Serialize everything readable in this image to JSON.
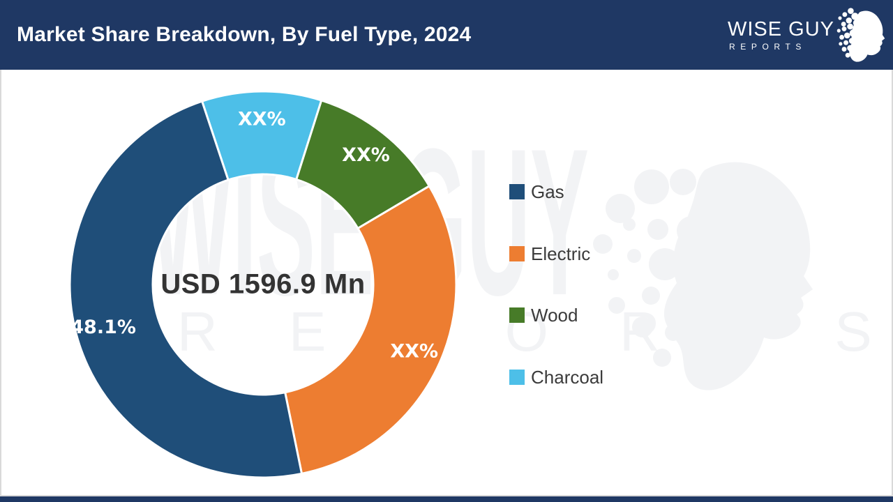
{
  "header": {
    "title": "Market Share Breakdown, By Fuel Type, 2024",
    "logo": {
      "line1": "WISE GUY",
      "line2": "REPORTS"
    }
  },
  "watermark": {
    "line1": "WISE GUY",
    "line2": "R E P O R T S"
  },
  "chart_data": {
    "type": "donut",
    "title": "Market Share Breakdown, By Fuel Type, 2024",
    "center_label": "USD 1596.9 Mn",
    "unit": "USD Mn",
    "total_value_mn": 1596.9,
    "start_angle_deg": -18.4,
    "segments": [
      {
        "name": "Charcoal",
        "label": "XX%",
        "value": 10.0,
        "color": "#4DBFE8"
      },
      {
        "name": "Wood",
        "label": "XX%",
        "value": 11.6,
        "color": "#477B28"
      },
      {
        "name": "Electric",
        "label": "XX%",
        "value": 30.3,
        "color": "#ED7D31"
      },
      {
        "name": "Gas",
        "label": "48.1%",
        "value": 48.1,
        "color": "#1F4E79"
      }
    ],
    "legend": [
      {
        "name": "Gas",
        "color": "#1F4E79"
      },
      {
        "name": "Electric",
        "color": "#ED7D31"
      },
      {
        "name": "Wood",
        "color": "#477B28"
      },
      {
        "name": "Charcoal",
        "color": "#4DBFE8"
      }
    ],
    "legend_position": "right"
  },
  "colors": {
    "header_bg": "#1F3864",
    "footer_bg": "#1F3864",
    "center_text": "#333333",
    "legend_text": "#3B3B3B",
    "segment_label_text": "#FFFFFF",
    "watermark": "#F2F3F5",
    "border": "#D9D9D9"
  }
}
